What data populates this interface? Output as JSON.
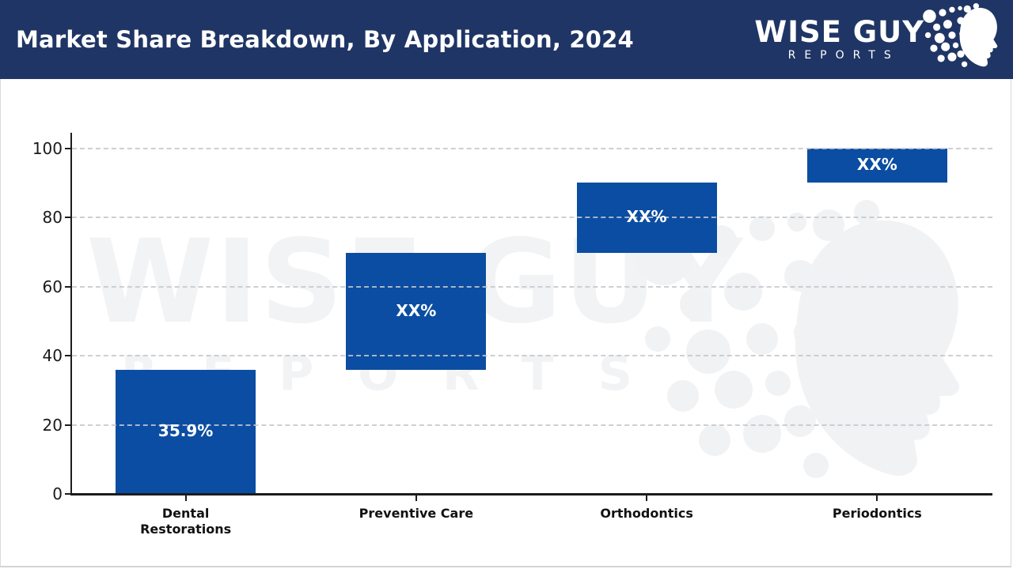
{
  "header": {
    "title": "Market Share Breakdown, By Application, 2024",
    "logo": {
      "line1": "WISE GUY",
      "line2": "REPORTS"
    }
  },
  "watermark": {
    "line1": "WISE GUY",
    "line2": "REPORTS"
  },
  "chart_data": {
    "type": "bar",
    "variant": "waterfall",
    "title": "Market Share Breakdown, By Application, 2024",
    "categories": [
      "Dental Restorations",
      "Preventive Care",
      "Orthodontics",
      "Periodontics"
    ],
    "tick_lines": [
      [
        "Dental",
        "Restorations"
      ],
      [
        "Preventive Care"
      ],
      [
        "Orthodontics"
      ],
      [
        "Periodontics"
      ]
    ],
    "segments": [
      {
        "category": "Dental Restorations",
        "start": 0,
        "end": 35.9,
        "label": "35.9%"
      },
      {
        "category": "Preventive Care",
        "start": 35.9,
        "end": 69.7,
        "label": "XX%"
      },
      {
        "category": "Orthodontics",
        "start": 69.7,
        "end": 90.1,
        "label": "XX%"
      },
      {
        "category": "Periodontics",
        "start": 90.1,
        "end": 100,
        "label": "XX%"
      }
    ],
    "yticks": [
      0,
      20,
      40,
      60,
      80,
      100
    ],
    "ylim": [
      0,
      105
    ],
    "xlabel": "",
    "ylabel": "",
    "grid": "dashed-horizontal",
    "legend": "none",
    "bar_color": "#0b4da2",
    "bar_label_color": "#ffffff",
    "axis_color": "#1c1c1c",
    "header_color": "#1f3565",
    "watermark_color": "#f2f3f4"
  }
}
